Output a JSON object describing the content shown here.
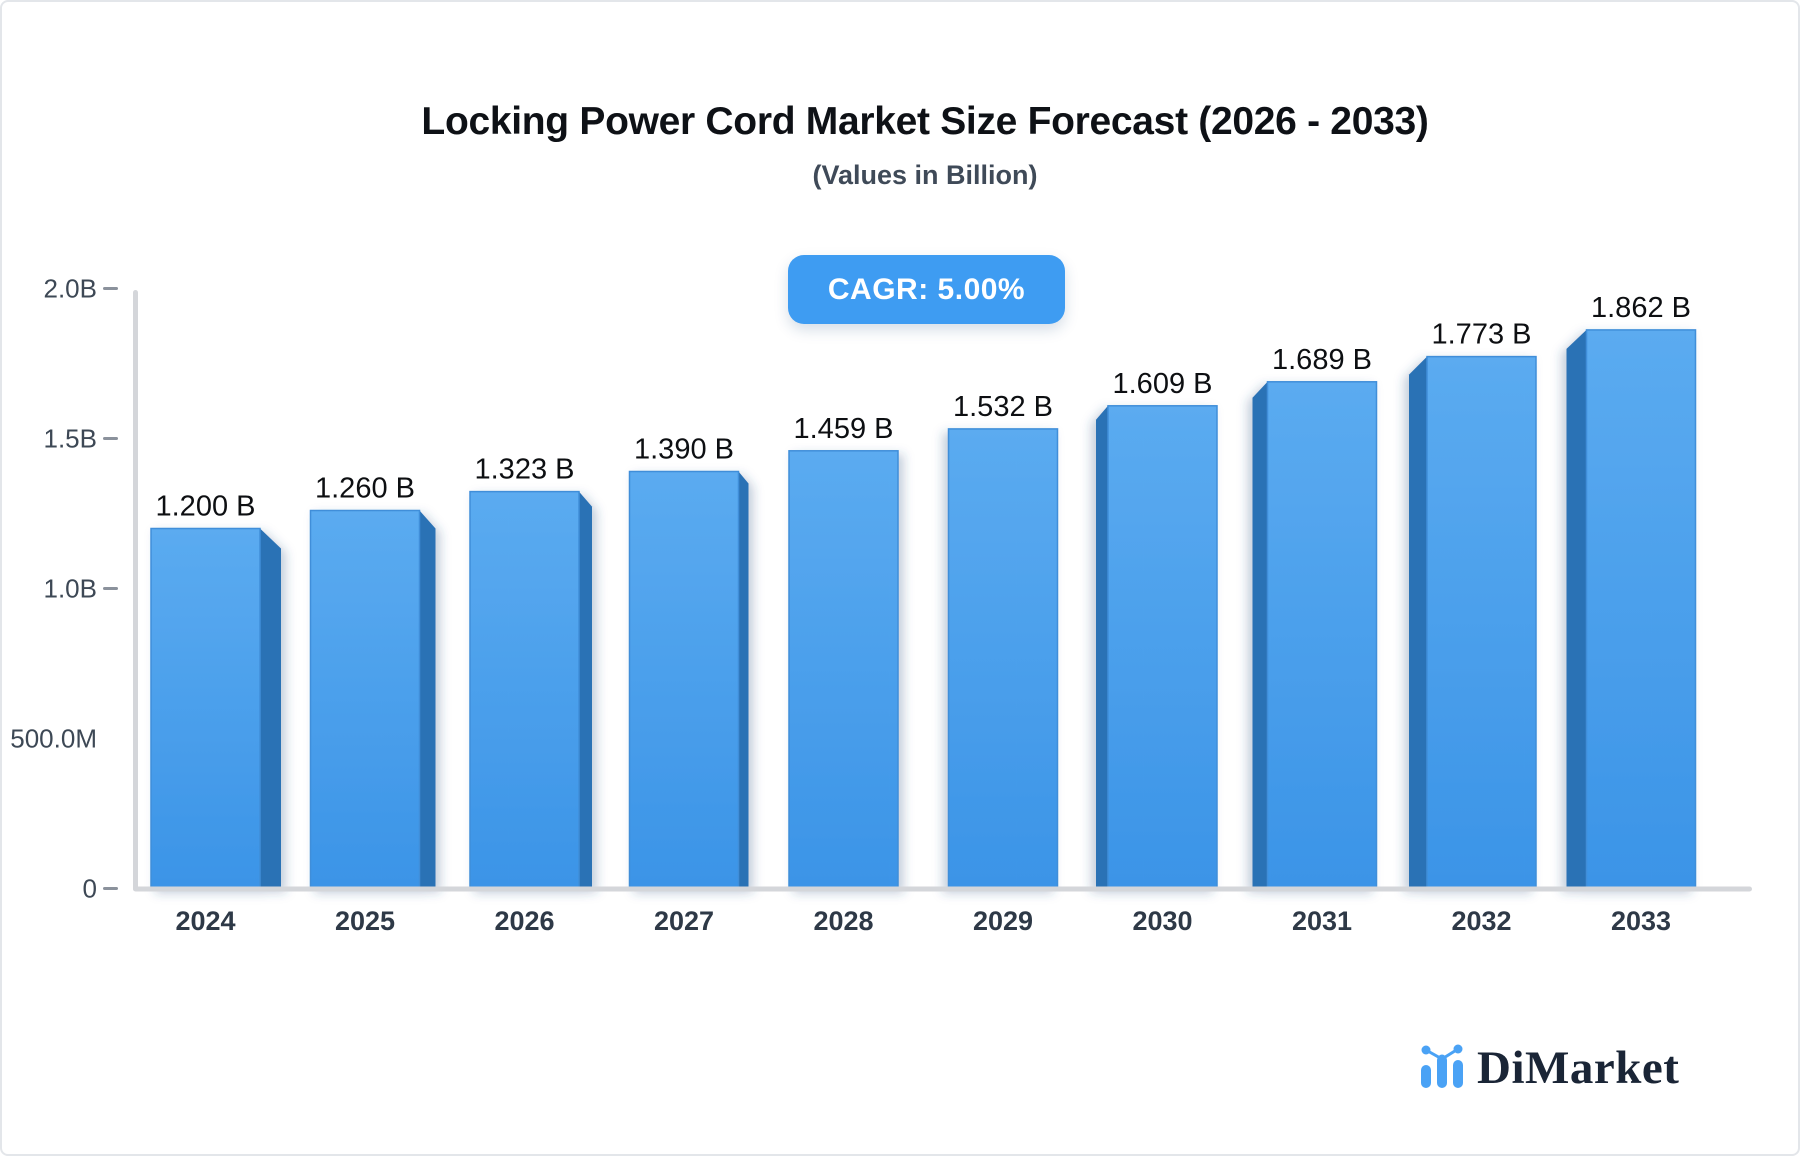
{
  "window": {
    "background": "#ffffff",
    "border_color": "#e3e6ea"
  },
  "header": {
    "title": "Locking Power Cord Market Size Forecast (2026 - 2033)",
    "subtitle": "(Values in Billion)"
  },
  "badge": {
    "label": "CAGR: 5.00%"
  },
  "chart_data": {
    "type": "bar",
    "title": "Locking Power Cord Market Size Forecast (2026 - 2033)",
    "subtitle": "(Values in Billion)",
    "cagr_label": "CAGR: 5.00%",
    "unit": "Billion",
    "categories": [
      "2024",
      "2025",
      "2026",
      "2027",
      "2028",
      "2029",
      "2030",
      "2031",
      "2032",
      "2033"
    ],
    "values": [
      1.2,
      1.26,
      1.323,
      1.39,
      1.459,
      1.532,
      1.609,
      1.689,
      1.773,
      1.862
    ],
    "value_labels": [
      "1.200 B",
      "1.260 B",
      "1.323 B",
      "1.390 B",
      "1.459 B",
      "1.532 B",
      "1.609 B",
      "1.689 B",
      "1.773 B",
      "1.862 B"
    ],
    "ylim": [
      0,
      2.0
    ],
    "y_axis_ticks": [
      {
        "label": "2.0B",
        "value": 2.0,
        "dash": true
      },
      {
        "label": "1.5B",
        "value": 1.5,
        "dash": true
      },
      {
        "label": "1.0B",
        "value": 1.0,
        "dash": true
      },
      {
        "label": "500.0M",
        "value": 0.5,
        "dash": false
      },
      {
        "label": "0",
        "value": 0.0,
        "dash": true
      }
    ],
    "grid": false,
    "legend": false,
    "style_3d": true,
    "colors": {
      "bar_face_top": "#5babf0",
      "bar_face_bottom": "#3b94e7",
      "bar_side": "#2c72b5",
      "bar_edge": "#3f8ed9",
      "axis_line": "#d4d6da",
      "tick": "#8b929c",
      "y_label": "#3d4855",
      "x_label": "#2e3947",
      "value_label": "#0d0f12",
      "badge_bg": "#3e9cf2",
      "badge_text": "#ffffff"
    }
  },
  "footer": {
    "brand": "DiMarket",
    "brand_icon_color": "#4aa2f5"
  }
}
